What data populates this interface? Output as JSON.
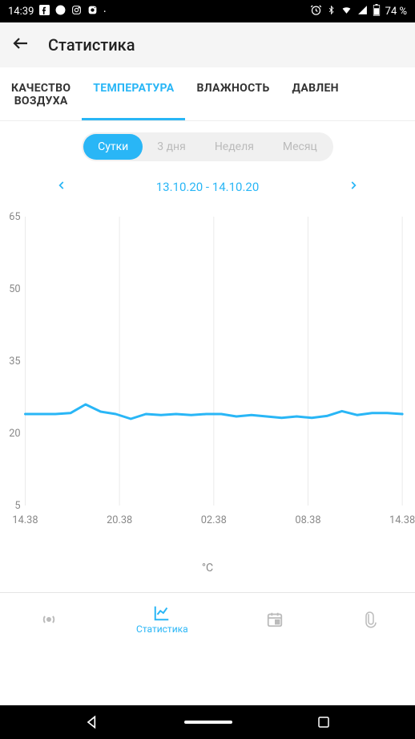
{
  "status": {
    "time": "14:39",
    "battery": "74 %"
  },
  "header": {
    "title": "Статистика"
  },
  "tabs": {
    "items": [
      {
        "label": "КАЧЕСТВО\nВОЗДУХА"
      },
      {
        "label": "ТЕМПЕРАТУРА"
      },
      {
        "label": "ВЛАЖНОСТЬ"
      },
      {
        "label": "ДАВЛЕН"
      }
    ],
    "active_index": 1
  },
  "range": {
    "options": [
      {
        "label": "Сутки"
      },
      {
        "label": "3 дня"
      },
      {
        "label": "Неделя"
      },
      {
        "label": "Месяц"
      }
    ],
    "active_index": 0
  },
  "date": {
    "label": "13.10.20 - 14.10.20"
  },
  "chart": {
    "type": "line",
    "y_ticks": [
      65,
      50,
      35,
      20,
      5
    ],
    "x_ticks": [
      "14.38",
      "20.38",
      "02.38",
      "08.38",
      "14.38"
    ],
    "ylim": [
      5,
      65
    ],
    "series": {
      "color": "#29b6f6",
      "stroke_width": 3,
      "data": [
        {
          "x": 0,
          "y": 24
        },
        {
          "x": 4,
          "y": 24
        },
        {
          "x": 8,
          "y": 24
        },
        {
          "x": 12,
          "y": 24.2
        },
        {
          "x": 16,
          "y": 26
        },
        {
          "x": 20,
          "y": 24.5
        },
        {
          "x": 24,
          "y": 24
        },
        {
          "x": 28,
          "y": 23
        },
        {
          "x": 32,
          "y": 24
        },
        {
          "x": 36,
          "y": 23.8
        },
        {
          "x": 40,
          "y": 24
        },
        {
          "x": 44,
          "y": 23.8
        },
        {
          "x": 48,
          "y": 24
        },
        {
          "x": 52,
          "y": 24
        },
        {
          "x": 56,
          "y": 23.5
        },
        {
          "x": 60,
          "y": 23.8
        },
        {
          "x": 64,
          "y": 23.5
        },
        {
          "x": 68,
          "y": 23.2
        },
        {
          "x": 72,
          "y": 23.5
        },
        {
          "x": 76,
          "y": 23.2
        },
        {
          "x": 80,
          "y": 23.6
        },
        {
          "x": 84,
          "y": 24.6
        },
        {
          "x": 88,
          "y": 23.8
        },
        {
          "x": 92,
          "y": 24.2
        },
        {
          "x": 96,
          "y": 24.2
        },
        {
          "x": 100,
          "y": 24
        }
      ]
    },
    "unit": "°C",
    "background_color": "#ffffff",
    "grid_color": "#eaeaea",
    "axis_label_color": "#888888",
    "axis_label_fontsize": 13
  },
  "bottom_nav": {
    "active_index": 1,
    "items": [
      {
        "name": "signal"
      },
      {
        "name": "stats",
        "label": "Статистика"
      },
      {
        "name": "calendar"
      },
      {
        "name": "attachment"
      }
    ]
  }
}
